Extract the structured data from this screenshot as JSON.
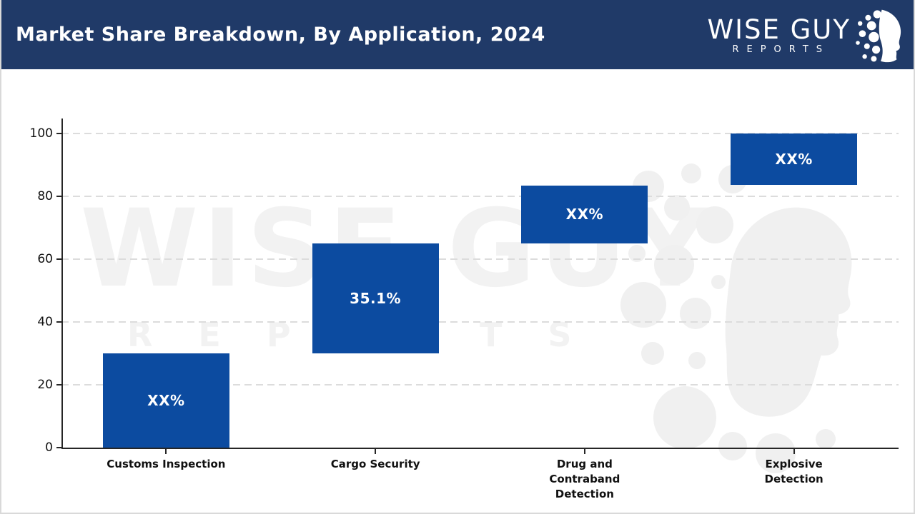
{
  "header": {
    "title": "Market Share Breakdown, By Application, 2024",
    "logo_primary": "WISE GUY",
    "logo_secondary": "REPORTS"
  },
  "watermark": {
    "line1": "WISE GUY",
    "line2": "REPORTS"
  },
  "colors": {
    "header_bg": "#203a68",
    "bar": "#0c4ba0",
    "bar_label": "#ffffff",
    "grid": "#dcdcdc",
    "axis": "#262626",
    "tick_label": "#111111",
    "watermark": "#f2f2f2"
  },
  "chart_data": {
    "type": "bar",
    "variant": "floating-waterfall",
    "title": "Market Share Breakdown, By Application, 2024",
    "categories": [
      "Customs Inspection",
      "Cargo Security",
      "Drug and\nContraband\nDetection",
      "Explosive\nDetection"
    ],
    "series": [
      {
        "name": "Market Share (%)",
        "segments": [
          {
            "category": "Customs Inspection",
            "start": 0,
            "end": 30,
            "label": "XX%"
          },
          {
            "category": "Cargo Security",
            "start": 30,
            "end": 65.1,
            "label": "35.1%"
          },
          {
            "category": "Drug and Contraband Detection",
            "start": 65.1,
            "end": 83.4,
            "label": "XX%"
          },
          {
            "category": "Explosive Detection",
            "start": 83.7,
            "end": 100,
            "label": "XX%"
          }
        ]
      }
    ],
    "xlabel": "",
    "ylabel": "",
    "ylim": [
      0,
      100
    ],
    "yticks": [
      0,
      20,
      40,
      60,
      80,
      100
    ],
    "grid": "horizontal-dashed",
    "legend": "none"
  }
}
